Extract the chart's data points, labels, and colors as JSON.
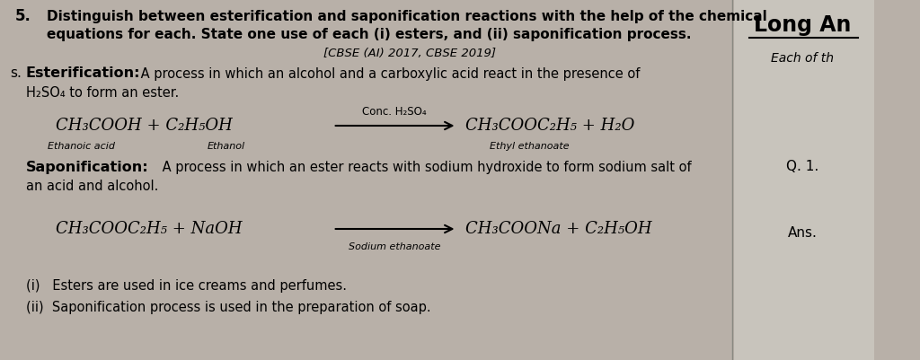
{
  "bg_color": "#b8b0a8",
  "right_bg_color": "#c8c4bc",
  "title_num": "5.",
  "title_line1": "Distinguish between esterification and saponification reactions with the help of the chemical",
  "title_line2": "equations for each. State one use of each (i) esters, and (ii) saponification process.",
  "cbse_ref": "[CBSE (AI) 2017, CBSE 2019]",
  "long_ans_label": "Long An",
  "each_of_label": "Each of th",
  "q1_label": "Q. 1.",
  "ans_label": "Ans.",
  "esterification_heading": "Esterification:",
  "esterification_text1": " A process in which an alcohol and a carboxylic acid react in the presence of",
  "esterification_text2": "H₂SO₄ to form an ester.",
  "saponification_heading": "Saponification:",
  "saponification_text1": " A process in which an ester reacts with sodium hydroxide to form sodium salt of",
  "saponification_text2": "an acid and alcohol.",
  "ester_eq_left": "CH₃COOH + C₂H₅OH",
  "ester_eq_arrow_label": "Conc. H₂SO₄",
  "ester_eq_right": "CH₃COOC₂H₅ + H₂O",
  "ester_label_left1": "Ethanoic acid",
  "ester_label_left2": "Ethanol",
  "ester_label_right": "Ethyl ethanoate",
  "sapon_eq_left": "CH₃COOC₂H₅ + NaOH",
  "sapon_eq_right": "CH₃COONa + C₂H₅OH",
  "sapon_label": "Sodium ethanoate",
  "use_i": "(i)   Esters are used in ice creams and perfumes.",
  "use_ii": "(ii)  Saponification process is used in the preparation of soap."
}
